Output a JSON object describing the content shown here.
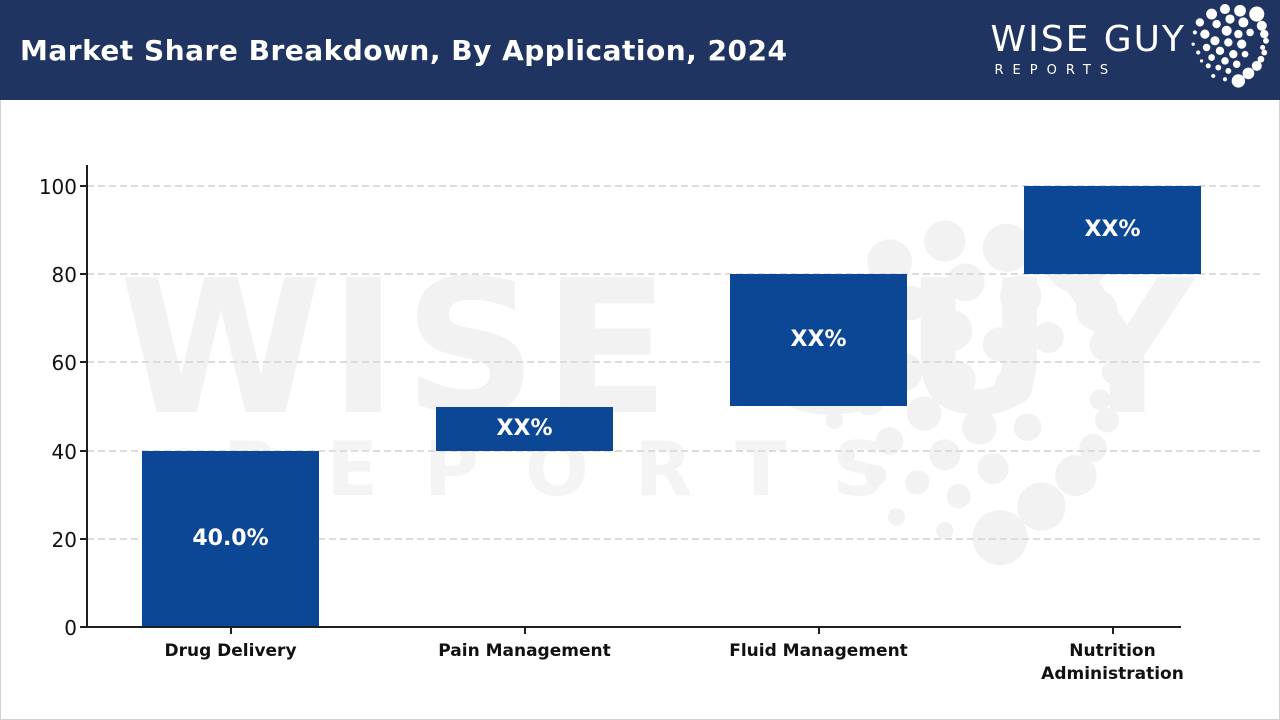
{
  "header": {
    "title": "Market Share Breakdown, By Application, 2024",
    "logo": {
      "line1": "WISE GUY",
      "line2": "REPORTS"
    }
  },
  "watermark": {
    "line1": "WISE GUY",
    "line2": "REPORTS"
  },
  "colors": {
    "header_navy": "#203461",
    "bar_blue": "#0c4796",
    "bar_label_white": "#ffffff",
    "grid_gray": "#dcdcdc",
    "axis_dark": "#1f1f1f",
    "watermark_gray": "#f2f2f3"
  },
  "chart_data": {
    "type": "bar",
    "subtype": "waterfall",
    "title": "Market Share Breakdown, By Application, 2024",
    "categories": [
      "Drug Delivery",
      "Pain Management",
      "Fluid Management",
      "Nutrition Administration"
    ],
    "series": [
      {
        "name": "Market share (%)",
        "segments": [
          {
            "category": "Drug Delivery",
            "start": 0,
            "end": 40,
            "value": 40,
            "label": "40.0%"
          },
          {
            "category": "Pain Management",
            "start": 40,
            "end": 50,
            "value": 10,
            "label": "XX%"
          },
          {
            "category": "Fluid Management",
            "start": 50,
            "end": 80,
            "value": 30,
            "label": "XX%"
          },
          {
            "category": "Nutrition Administration",
            "start": 80,
            "end": 100,
            "value": 20,
            "label": "XX%"
          }
        ]
      }
    ],
    "xlabel": "",
    "ylabel": "",
    "yticks": [
      0,
      20,
      40,
      60,
      80,
      100
    ],
    "ylim": [
      0,
      105
    ],
    "grid": "horizontal-dashed",
    "legend": "none"
  }
}
